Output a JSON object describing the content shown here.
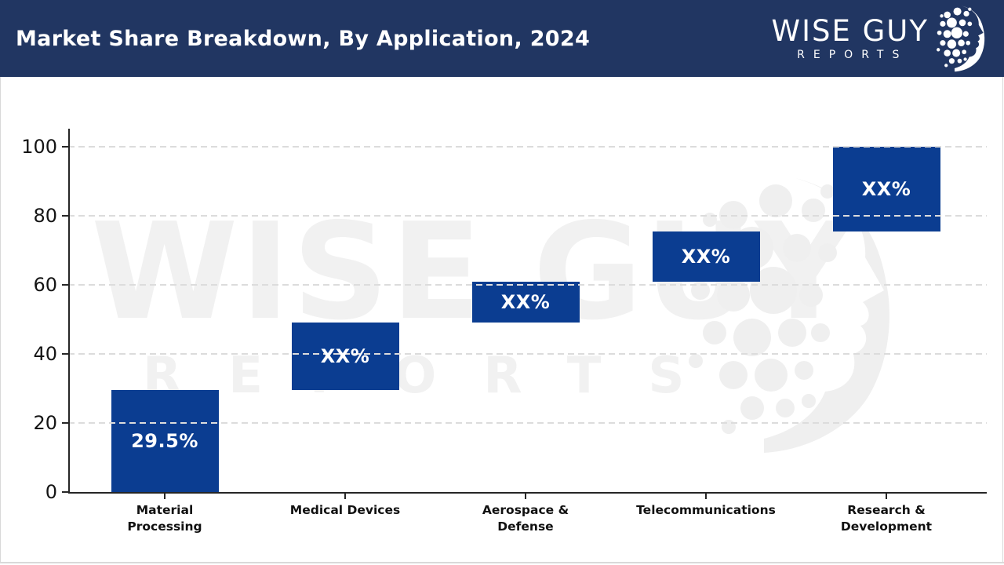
{
  "header": {
    "title": "Market Share Breakdown, By Application, 2024",
    "logo": {
      "line1": "WISE GUY",
      "line2": "REPORTS"
    }
  },
  "watermark": {
    "line1": "WISE GUY",
    "line2": "REPORTS"
  },
  "colors": {
    "header_bg": "#213662",
    "bar": "#0b3d91",
    "bar_label": "#ffffff",
    "grid": "#dcdcdc",
    "axis": "#262626",
    "watermark": "#f1f1f1"
  },
  "chart_data": {
    "type": "bar",
    "subtype": "waterfall",
    "title": "Market Share Breakdown, By Application, 2024",
    "categories": [
      "Material\nProcessing",
      "Medical Devices",
      "Aerospace &\nDefense",
      "Telecommunications",
      "Research &\nDevelopment"
    ],
    "segments": [
      {
        "start": 0,
        "end": 29.5,
        "label": "29.5%"
      },
      {
        "start": 29.5,
        "end": 49,
        "label": "XX%"
      },
      {
        "start": 49,
        "end": 61,
        "label": "XX%"
      },
      {
        "start": 61,
        "end": 75.5,
        "label": "XX%"
      },
      {
        "start": 75.5,
        "end": 100,
        "label": "XX%"
      }
    ],
    "ylim": [
      0,
      100
    ],
    "yticks": [
      0,
      20,
      40,
      60,
      80,
      100
    ],
    "grid": "horizontal-dashed",
    "legend": "none",
    "xlabel": "",
    "ylabel": ""
  }
}
